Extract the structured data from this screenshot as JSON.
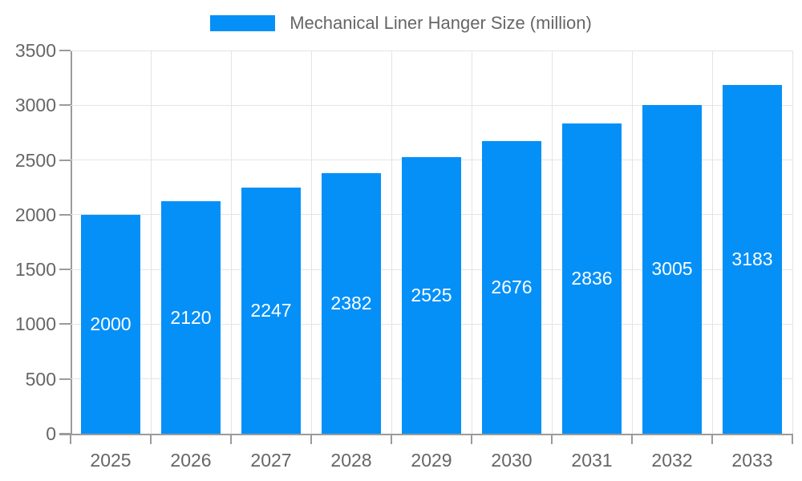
{
  "chart_data": {
    "type": "bar",
    "title": "Mechanical Liner Hanger Size (million)",
    "categories": [
      "2025",
      "2026",
      "2027",
      "2028",
      "2029",
      "2030",
      "2031",
      "2032",
      "2033"
    ],
    "values": [
      2000,
      2120,
      2247,
      2382,
      2525,
      2676,
      2836,
      3005,
      3183
    ],
    "xlabel": "",
    "ylabel": "",
    "ylim": [
      0,
      3500
    ],
    "ytick_step": 500,
    "grid": true,
    "legend_position": "top-center",
    "bar_labels_visible": true,
    "colors": {
      "bar": "#0590f8",
      "grid": "#e4e4e4",
      "axis": "#9b9b9b",
      "tick_text": "#666666",
      "bar_label": "#ffffff"
    }
  }
}
